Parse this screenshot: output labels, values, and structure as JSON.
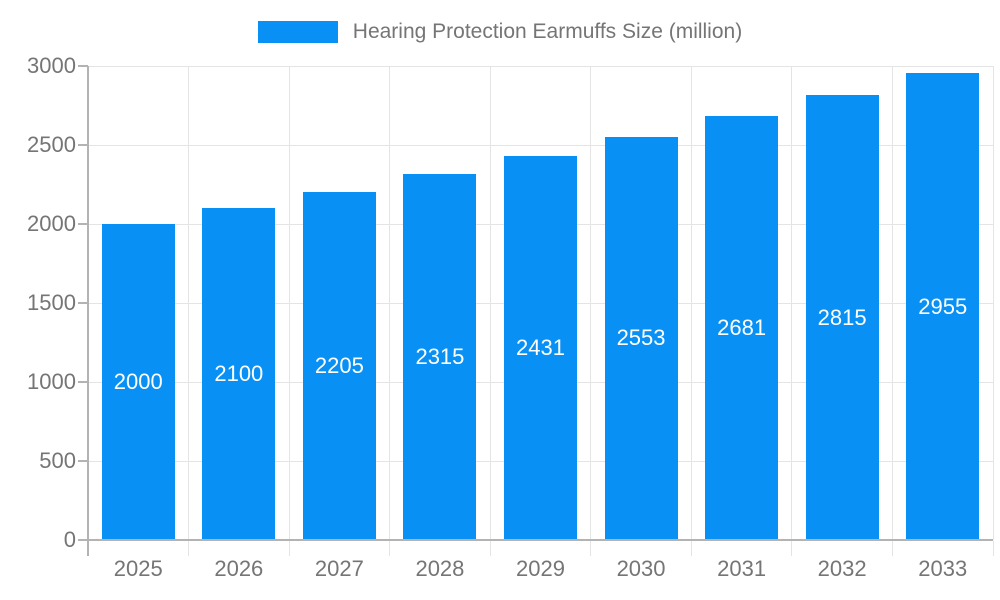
{
  "chart_data": {
    "type": "bar",
    "title": "Hearing Protection Earmuffs Size (million)",
    "legend_entries": [
      "Hearing Protection Earmuffs Size (million)"
    ],
    "legend_position": "top",
    "categories": [
      "2025",
      "2026",
      "2027",
      "2028",
      "2029",
      "2030",
      "2031",
      "2032",
      "2033"
    ],
    "values": [
      2000,
      2100,
      2205,
      2315,
      2431,
      2553,
      2681,
      2815,
      2955
    ],
    "xlabel": "",
    "ylabel": "",
    "ylim": [
      0,
      3000
    ],
    "y_ticks": [
      0,
      500,
      1000,
      1500,
      2000,
      2500,
      3000
    ],
    "grid": true,
    "value_labels": "inside-center",
    "colors": {
      "bar": "#0890f4",
      "bar_label": "#ffffff",
      "axis_text": "#757575",
      "axis_line": "#b3b3b3",
      "gridline": "#e4e4e4",
      "background": "#ffffff"
    }
  }
}
